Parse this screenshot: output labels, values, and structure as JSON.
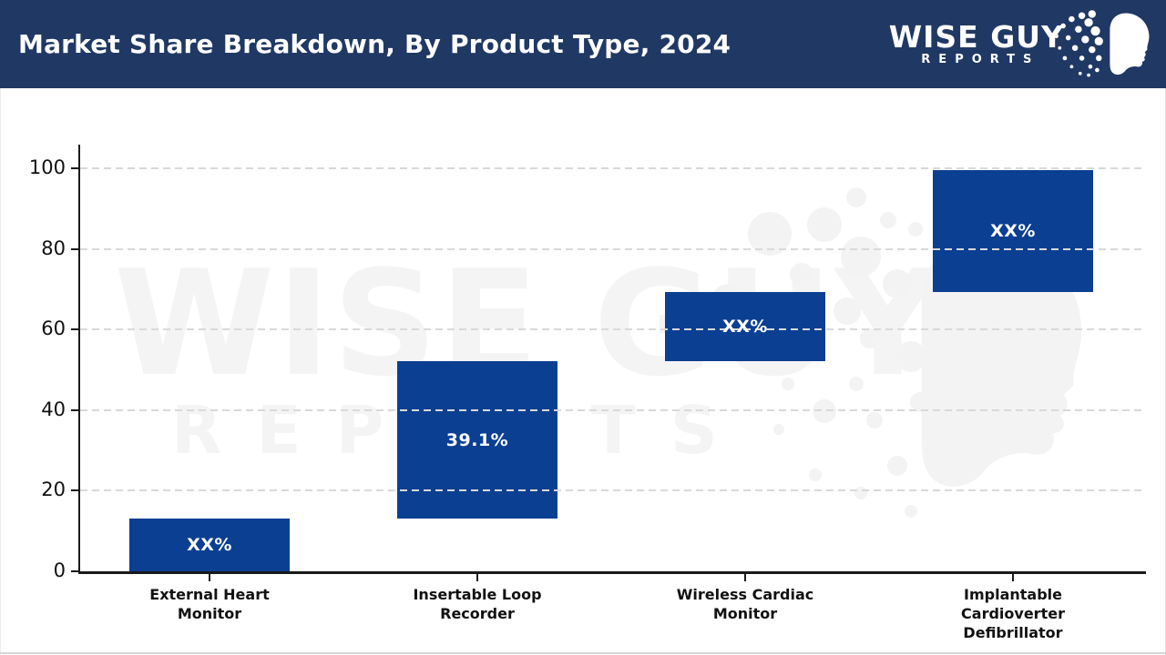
{
  "header": {
    "title": "Market Share Breakdown, By Product Type, 2024",
    "logo": {
      "primary": "WISE GUY",
      "secondary": "REPORTS"
    }
  },
  "watermark": {
    "primary": "WISE GUY",
    "secondary": "REPORTS"
  },
  "chart_data": {
    "type": "bar",
    "subtype": "floating-waterfall",
    "title": "Market Share Breakdown, By Product Type, 2024",
    "xlabel": "",
    "ylabel": "",
    "ylim": [
      0,
      100
    ],
    "yticks": [
      0,
      20,
      40,
      60,
      80,
      100
    ],
    "grid": "horizontal-dashed",
    "legend": "none",
    "bar_color": "#0b3f92",
    "bar_label_color": "#ffffff",
    "categories": [
      "External Heart Monitor",
      "Insertable Loop Recorder",
      "Wireless Cardiac Monitor",
      "Implantable Cardioverter Defibrillator"
    ],
    "bars": [
      {
        "category": "External Heart Monitor",
        "category_lines": [
          "External Heart",
          "Monitor"
        ],
        "start": 0,
        "end": 13,
        "label": "XX%"
      },
      {
        "category": "Insertable Loop Recorder",
        "category_lines": [
          "Insertable Loop",
          "Recorder"
        ],
        "start": 13,
        "end": 52.1,
        "label": "39.1%"
      },
      {
        "category": "Wireless Cardiac Monitor",
        "category_lines": [
          "Wireless Cardiac",
          "Monitor"
        ],
        "start": 52.1,
        "end": 69.3,
        "label": "XX%"
      },
      {
        "category": "Implantable Cardioverter Defibrillator",
        "category_lines": [
          "Implantable",
          "Cardioverter",
          "Defibrillator"
        ],
        "start": 69.3,
        "end": 99.5,
        "label": "XX%"
      }
    ]
  },
  "colors": {
    "header_bg": "#203864",
    "bar": "#0b3f92",
    "grid": "#d9d9d9",
    "axis": "#1a1a1a",
    "watermark": "#f3f3f3"
  }
}
